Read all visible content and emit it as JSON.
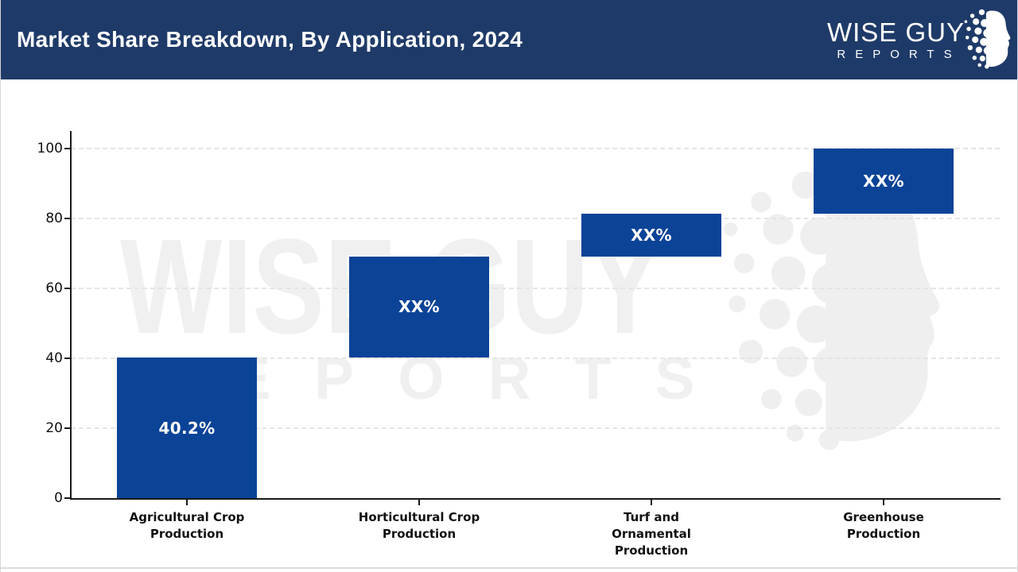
{
  "header": {
    "title": "Market Share Breakdown, By Application, 2024",
    "bg_color": "#1e3a68",
    "logo": {
      "wordmark": "WISE GUY",
      "sub": "REPORTS"
    }
  },
  "watermark": {
    "wordmark": "WISE GUY",
    "sub": "REPORTS"
  },
  "chart_data": {
    "type": "bar",
    "variant": "waterfall-segments",
    "title": "Market Share Breakdown, By Application, 2024",
    "categories": [
      "Agricultural Crop Production",
      "Horticultural Crop Production",
      "Turf and Ornamental Production",
      "Greenhouse Production"
    ],
    "category_lines": [
      [
        "Agricultural Crop",
        "Production"
      ],
      [
        "Horticultural Crop",
        "Production"
      ],
      [
        "Turf and",
        "Ornamental",
        "Production"
      ],
      [
        "Greenhouse",
        "Production"
      ]
    ],
    "bars": [
      {
        "category": "Agricultural Crop Production",
        "label": "40.2%",
        "start": 0,
        "end": 40.2
      },
      {
        "category": "Horticultural Crop Production",
        "label": "XX%",
        "start": 40.2,
        "end": 69.2
      },
      {
        "category": "Turf and Ornamental Production",
        "label": "XX%",
        "start": 69.2,
        "end": 81.3
      },
      {
        "category": "Greenhouse Production",
        "label": "XX%",
        "start": 81.3,
        "end": 100
      }
    ],
    "bar_color": "#0b4397",
    "bar_label_color": "#ffffff",
    "ylim": [
      0,
      100
    ],
    "yticks": [
      0,
      20,
      40,
      60,
      80,
      100
    ],
    "grid": {
      "axis": "y",
      "style": "dashed",
      "color": "#e4e4e4"
    },
    "axis_color": "#1a1a1a",
    "tick_label_color": "#111111",
    "legend": "none"
  }
}
